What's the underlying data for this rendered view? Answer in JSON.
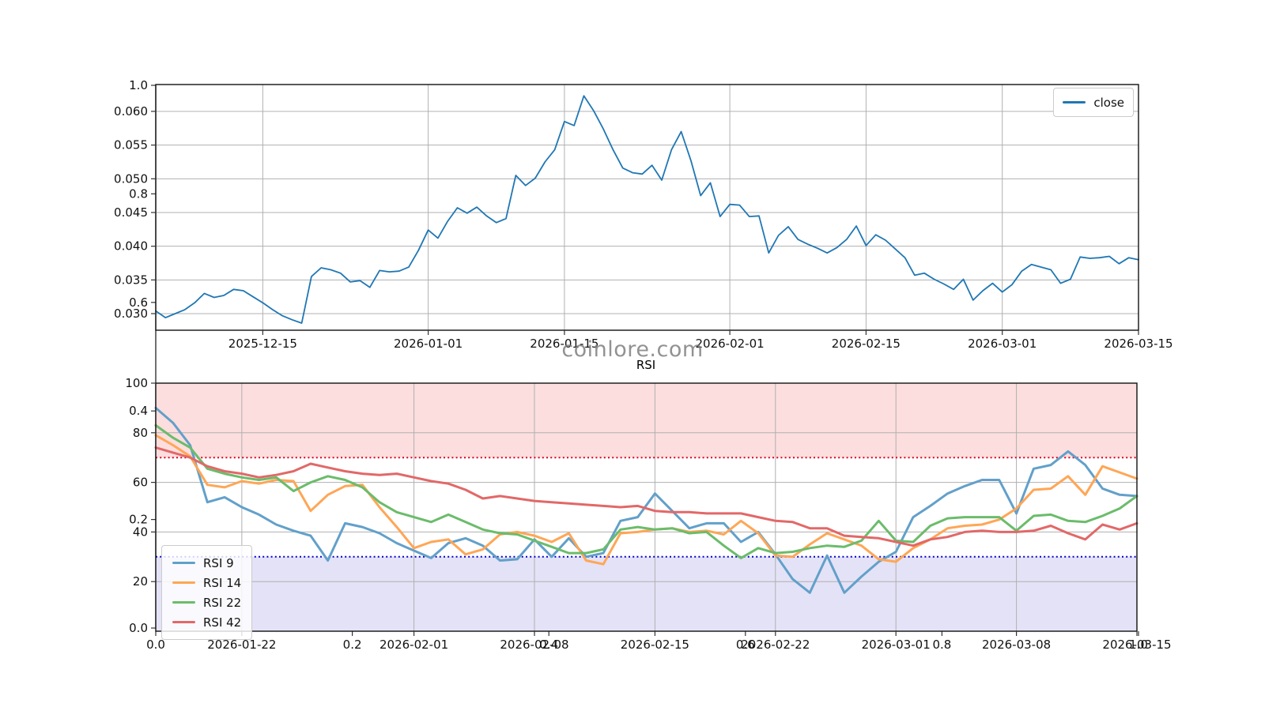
{
  "watermark": "coinlore.com",
  "parent_axes": {
    "y_tick_labels": [
      "1.0",
      "0.8",
      "0.6",
      "0.4",
      "0.2",
      "0.0"
    ],
    "x_tick_labels": [
      "0.0",
      "0.2",
      "0.4",
      "0.6",
      "0.8",
      "1.0"
    ]
  },
  "styles": {
    "grid_color": "#b0b0b0",
    "spine_color": "#111111",
    "tick_color": "#333333",
    "label_color": "#111111",
    "watermark_color": "#7f7f7f",
    "overbought_color": "#fcdede",
    "oversold_color": "#e4e2f6",
    "overbought_line_color": "#dd0022",
    "oversold_line_color": "#0000cc"
  },
  "chart_data": [
    {
      "type": "line",
      "name": "price-chart",
      "title": "",
      "grid": true,
      "legend_position": "upper right",
      "x_tick_labels": [
        "2025-12-15",
        "2026-01-01",
        "2026-01-15",
        "2026-02-01",
        "2026-02-15",
        "2026-03-01",
        "2026-03-15"
      ],
      "x_tick_pos": [
        11,
        28,
        42,
        59,
        73,
        87,
        101
      ],
      "x_range_days": 101,
      "y_ticks": [
        0.03,
        0.035,
        0.04,
        0.045,
        0.05,
        0.055,
        0.06
      ],
      "y_tick_labels": [
        "0.030",
        "0.035",
        "0.040",
        "0.045",
        "0.050",
        "0.055",
        "0.060"
      ],
      "ylim": [
        0.02754,
        0.06398
      ],
      "series": [
        {
          "name": "close",
          "color": "#1f77b4",
          "width": 1.8,
          "values": [
            0.0304,
            0.0294,
            0.03,
            0.0306,
            0.0316,
            0.033,
            0.0324,
            0.0327,
            0.0336,
            0.0334,
            0.0325,
            0.0316,
            0.0306,
            0.0297,
            0.0291,
            0.0286,
            0.0355,
            0.0368,
            0.0365,
            0.036,
            0.0347,
            0.0349,
            0.0339,
            0.0364,
            0.0362,
            0.0363,
            0.0369,
            0.0394,
            0.0424,
            0.0412,
            0.0437,
            0.0457,
            0.0449,
            0.0458,
            0.0445,
            0.0435,
            0.0441,
            0.0505,
            0.049,
            0.0501,
            0.0525,
            0.0543,
            0.0585,
            0.0579,
            0.0623,
            0.0601,
            0.0574,
            0.0543,
            0.0516,
            0.0509,
            0.0507,
            0.052,
            0.0498,
            0.0543,
            0.057,
            0.0527,
            0.0475,
            0.0494,
            0.0444,
            0.0462,
            0.0461,
            0.0444,
            0.0445,
            0.039,
            0.0416,
            0.0429,
            0.041,
            0.0403,
            0.0397,
            0.039,
            0.0398,
            0.041,
            0.043,
            0.0401,
            0.0417,
            0.0409,
            0.0396,
            0.0383,
            0.0357,
            0.036,
            0.0351,
            0.0344,
            0.0336,
            0.0351,
            0.032,
            0.0334,
            0.0345,
            0.0332,
            0.0343,
            0.0363,
            0.0373,
            0.0369,
            0.0365,
            0.0345,
            0.0351,
            0.0384,
            0.0382,
            0.0383,
            0.0385,
            0.0374,
            0.0383,
            0.038
          ]
        }
      ]
    },
    {
      "type": "line",
      "name": "rsi-chart",
      "title": "RSI",
      "grid": true,
      "legend_position": "lower left",
      "x_tick_labels": [
        "2026-01-22",
        "2026-02-01",
        "2026-02-08",
        "2026-02-15",
        "2026-02-22",
        "2026-03-01",
        "2026-03-08",
        "2026-03-15"
      ],
      "x_tick_pos": [
        5,
        15,
        22,
        29,
        36,
        43,
        50,
        57
      ],
      "x_range_days": 57,
      "y_ticks": [
        20,
        40,
        60,
        80,
        100
      ],
      "y_tick_labels": [
        "20",
        "40",
        "60",
        "80",
        "100"
      ],
      "ylim": [
        0,
        100
      ],
      "overbought_band": {
        "from": 70,
        "to": 100
      },
      "oversold_band": {
        "from": 0,
        "to": 30
      },
      "ref_lines": [
        {
          "value": 70,
          "style": "dotted",
          "color": "#dd0022"
        },
        {
          "value": 30,
          "style": "dotted",
          "color": "#0000cc"
        }
      ],
      "series": [
        {
          "name": "RSI 9",
          "color": "#62a0ca",
          "width": 3,
          "values": [
            90,
            84,
            75,
            52,
            54,
            50,
            47,
            43,
            40.5,
            38.5,
            28.5,
            43.5,
            42,
            39.5,
            35.5,
            32.5,
            29.5,
            35.5,
            37.5,
            34.5,
            28.5,
            29,
            37,
            30,
            37.5,
            30,
            31.5,
            44.5,
            46,
            55.5,
            48.5,
            41.5,
            43.5,
            43.5,
            36,
            40,
            31,
            21,
            15.5,
            30.5,
            15.5,
            22,
            28,
            32,
            46,
            50.5,
            55.5,
            58.5,
            61,
            61,
            47.5,
            65.5,
            67,
            72.5,
            67,
            57.5,
            55,
            54.5
          ]
        },
        {
          "name": "RSI 14",
          "color": "#ffa656",
          "width": 3,
          "values": [
            79,
            75,
            70.5,
            59,
            58,
            60.5,
            59.5,
            61,
            60.5,
            48.5,
            55,
            58.5,
            59,
            50,
            42,
            33.5,
            36,
            37,
            31,
            33,
            39,
            40,
            38.5,
            36,
            39.5,
            28.5,
            27,
            39.5,
            40,
            41,
            41.5,
            40,
            40.5,
            39,
            44.5,
            39.5,
            30.5,
            30,
            35,
            39.5,
            37,
            34.5,
            29,
            28,
            33.5,
            37,
            41.5,
            42.5,
            43,
            45,
            49.5,
            57,
            57.5,
            62.5,
            55,
            66.5,
            64,
            61.5
          ]
        },
        {
          "name": "RSI 22",
          "color": "#6bbc6b",
          "width": 3,
          "values": [
            83,
            78,
            74,
            65.5,
            63.5,
            62,
            61,
            62,
            56.5,
            60,
            62.5,
            61,
            58,
            52,
            48,
            46,
            44,
            47,
            44,
            41,
            39.5,
            39,
            36.5,
            34,
            31.5,
            31.5,
            33,
            41,
            42,
            41,
            41.5,
            39.5,
            40,
            34.5,
            29.5,
            33.5,
            31.5,
            32,
            33.5,
            34.5,
            34,
            36.5,
            44.5,
            36.5,
            36,
            42.5,
            45.5,
            46,
            46,
            46,
            40.5,
            46.5,
            47,
            44.5,
            44,
            46.5,
            49.5,
            54.5
          ]
        },
        {
          "name": "RSI 42",
          "color": "#e26868",
          "width": 3,
          "values": [
            74,
            72,
            70,
            66.5,
            64.5,
            63.5,
            62,
            63,
            64.5,
            67.5,
            66,
            64.5,
            63.5,
            63,
            63.5,
            62,
            60.5,
            59.5,
            57,
            53.5,
            54.5,
            53.5,
            52.5,
            52,
            51.5,
            51,
            50.5,
            50,
            50.5,
            48.5,
            48,
            48,
            47.5,
            47.5,
            47.5,
            46,
            44.5,
            44,
            41.5,
            41.5,
            38.5,
            38,
            37.5,
            36,
            34.5,
            37,
            38,
            40,
            40.5,
            40,
            40,
            40.5,
            42.5,
            39.5,
            37,
            43,
            41,
            43.5
          ]
        }
      ]
    }
  ]
}
